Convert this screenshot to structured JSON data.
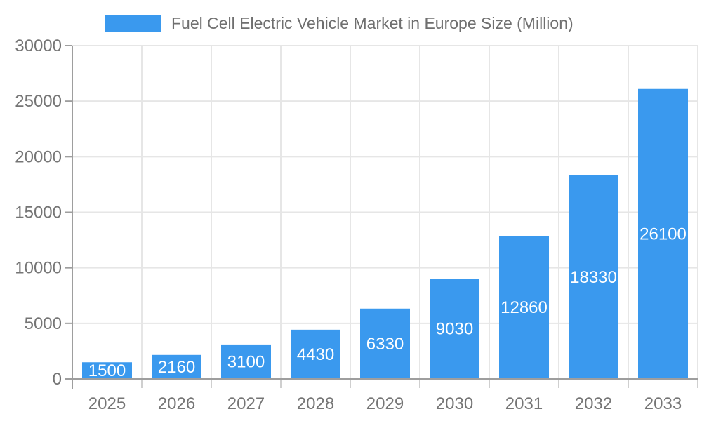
{
  "chart_data": {
    "type": "bar",
    "title": "Fuel Cell Electric Vehicle Market in Europe Size (Million)",
    "categories": [
      "2025",
      "2026",
      "2027",
      "2028",
      "2029",
      "2030",
      "2031",
      "2032",
      "2033"
    ],
    "values": [
      1500,
      2160,
      3100,
      4430,
      6330,
      9030,
      12860,
      18330,
      26100
    ],
    "xlabel": "",
    "ylabel": "",
    "ylim": [
      0,
      30000
    ],
    "yticks": [
      0,
      5000,
      10000,
      15000,
      20000,
      25000,
      30000
    ],
    "grid": true,
    "legend_position": "top-left",
    "bar_labels_inside": true,
    "colors": {
      "bar": "#3A99EE",
      "bar_label": "#FFFFFF",
      "grid": "#E6E6E6",
      "axis_line": "#9E9E9E",
      "minor_tick": "#CFCFCF",
      "axis_text": "#757575",
      "title_text": "#6F6F6F",
      "background": "#FFFFFF"
    }
  }
}
